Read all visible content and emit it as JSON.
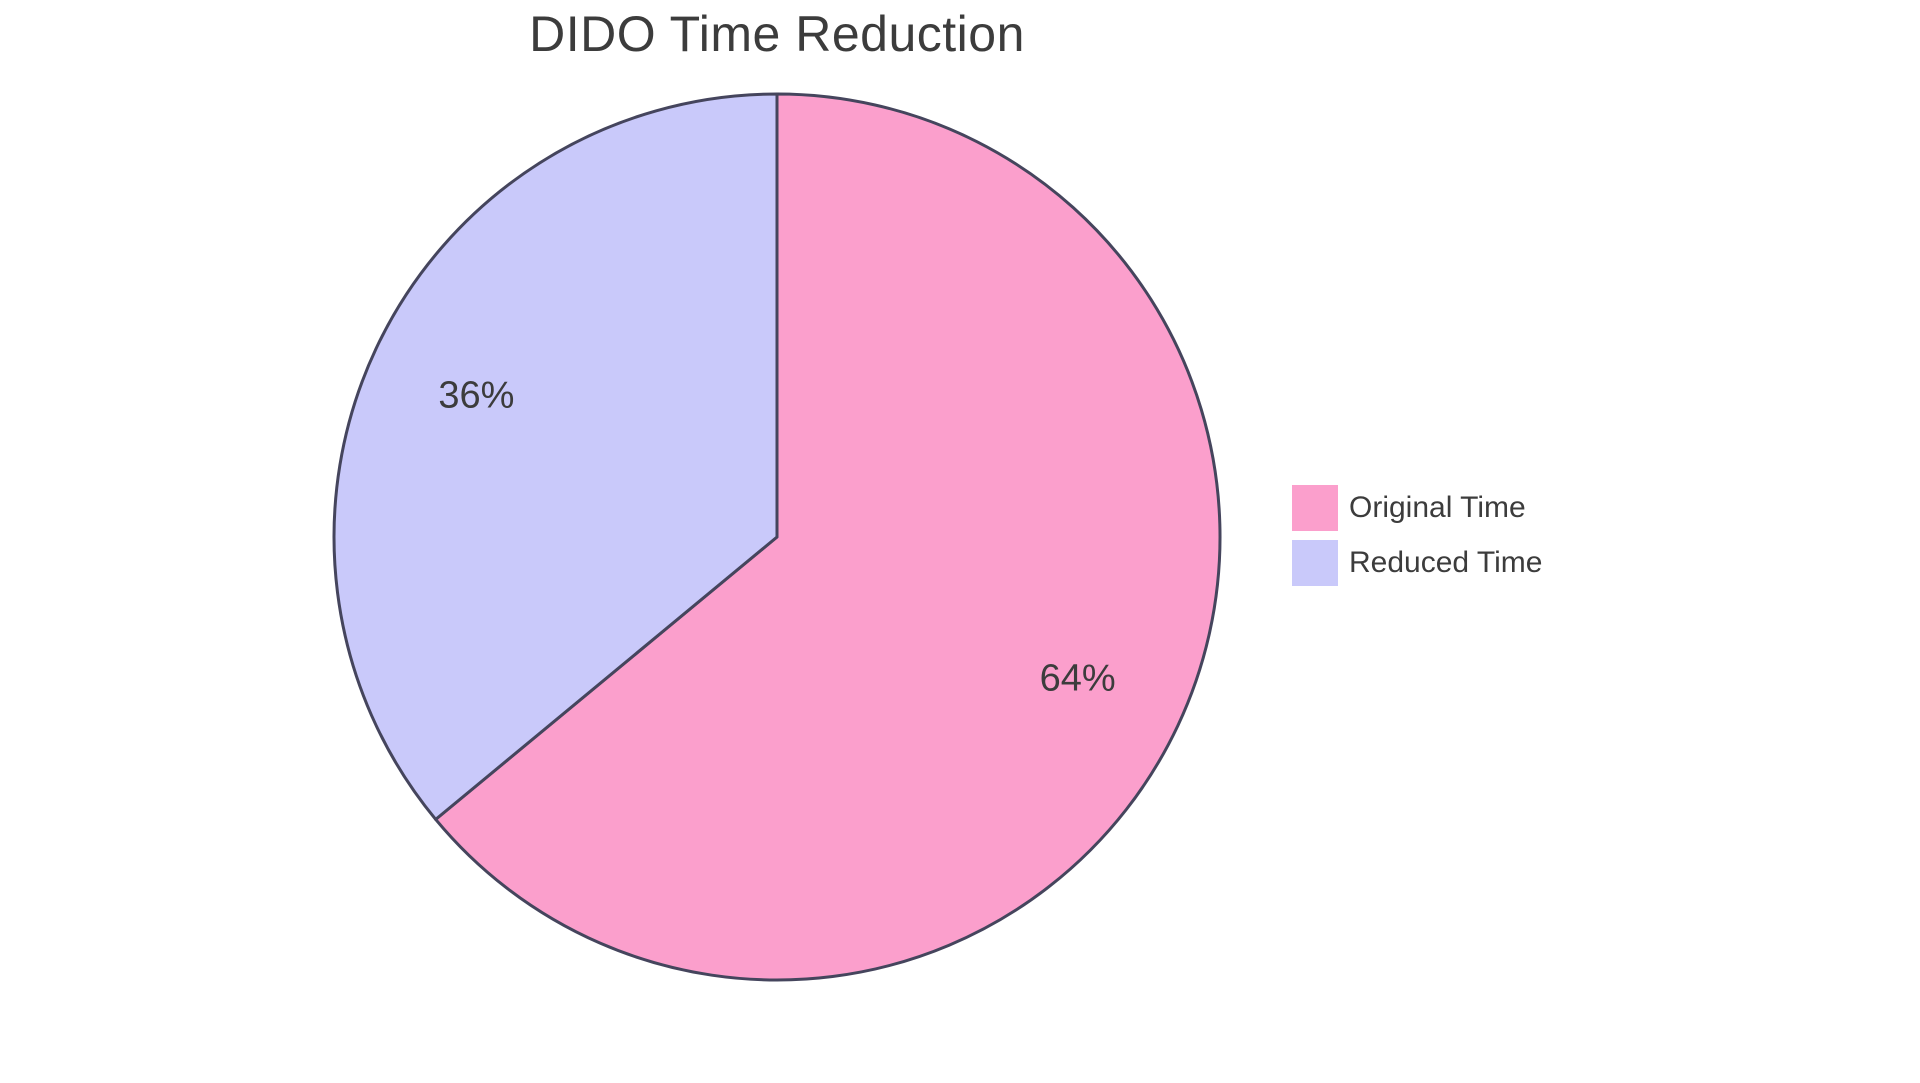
{
  "chart_data": {
    "type": "pie",
    "title": "DIDO Time Reduction",
    "labels": [
      "Original Time",
      "Reduced Time"
    ],
    "values": [
      64,
      36
    ],
    "slice_labels": [
      "64%",
      "36%"
    ],
    "colors": [
      "#FB9FCC",
      "#C9C9FA"
    ],
    "outline_color": "#45455D",
    "text_color": "#3C3C3C",
    "legend_position": "right",
    "start_angle": "top",
    "direction": "clockwise",
    "background": "#FFFFFF"
  }
}
